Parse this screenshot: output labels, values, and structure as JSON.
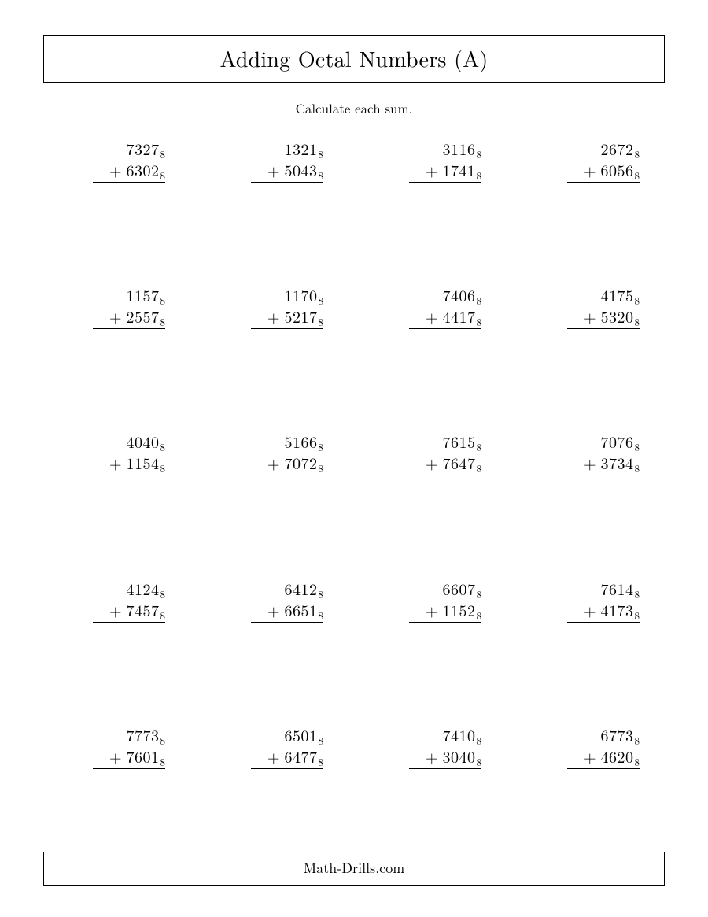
{
  "title": "Adding Octal Numbers (A)",
  "instruction": "Calculate each sum.",
  "base_label": "8",
  "operator": "+",
  "footer": "Math-Drills.com",
  "text_color": "#000000",
  "background_color": "#ffffff",
  "border_color": "#000000",
  "title_fontsize": 28,
  "body_fontsize": 20,
  "subscript_fontsize": 13,
  "problems": [
    [
      {
        "a": "7327",
        "b": "6302"
      },
      {
        "a": "1321",
        "b": "5043"
      },
      {
        "a": "3116",
        "b": "1741"
      },
      {
        "a": "2672",
        "b": "6056"
      }
    ],
    [
      {
        "a": "1157",
        "b": "2557"
      },
      {
        "a": "1170",
        "b": "5217"
      },
      {
        "a": "7406",
        "b": "4417"
      },
      {
        "a": "4175",
        "b": "5320"
      }
    ],
    [
      {
        "a": "4040",
        "b": "1154"
      },
      {
        "a": "5166",
        "b": "7072"
      },
      {
        "a": "7615",
        "b": "7647"
      },
      {
        "a": "7076",
        "b": "3734"
      }
    ],
    [
      {
        "a": "4124",
        "b": "7457"
      },
      {
        "a": "6412",
        "b": "6651"
      },
      {
        "a": "6607",
        "b": "1152"
      },
      {
        "a": "7614",
        "b": "4173"
      }
    ],
    [
      {
        "a": "7773",
        "b": "7601"
      },
      {
        "a": "6501",
        "b": "6477"
      },
      {
        "a": "7410",
        "b": "3040"
      },
      {
        "a": "6773",
        "b": "4620"
      }
    ]
  ]
}
